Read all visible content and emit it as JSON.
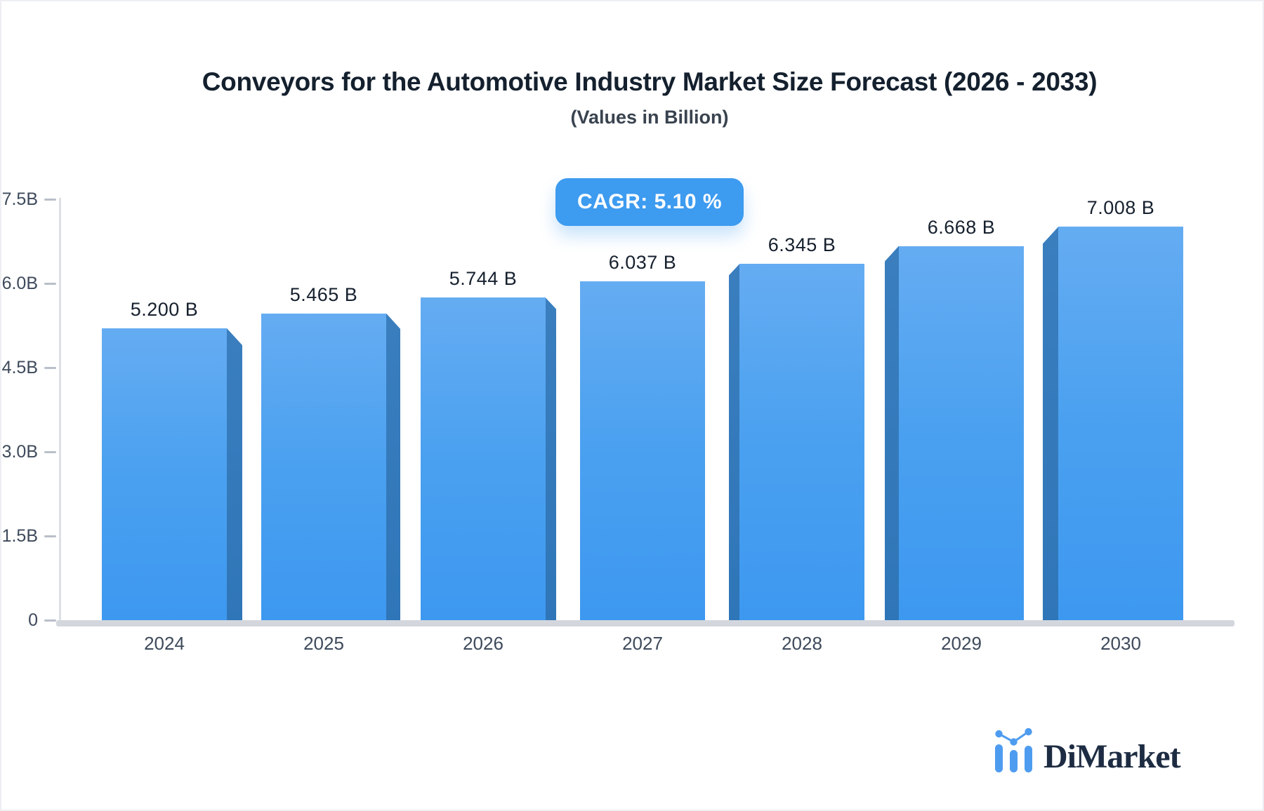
{
  "header": {
    "title": "Conveyors for the Automotive Industry Market Size Forecast (2026 - 2033)",
    "subtitle": "(Values in Billion)",
    "cagr_badge": "CAGR: 5.10 %"
  },
  "branding": {
    "logo_text": "DiMarket",
    "logo_icon": "mini-bar-chart-icon"
  },
  "colors": {
    "background": "#FFFFFF",
    "bar_face_top": "#65ACF2",
    "bar_face_bottom": "#3D98F0",
    "bar_side": "#2F76B8",
    "badge_bg": "#3D9BF0",
    "badge_text": "#FFFFFF",
    "title_text": "#14202E",
    "subtitle_text": "#39434F",
    "axis_text": "#3E4A5B",
    "value_text": "#16202E",
    "axis_line": "#DCDFE4",
    "baseline": "#D3D7DD",
    "logo_blue": "#4E9CF0",
    "logo_navy": "#1D2C42"
  },
  "chart_data": {
    "type": "bar",
    "title": "Conveyors for the Automotive Industry Market Size Forecast (2026 - 2033)",
    "subtitle": "(Values in Billion)",
    "annotation": "CAGR: 5.10 %",
    "categories": [
      "2024",
      "2025",
      "2026",
      "2027",
      "2028",
      "2029",
      "2030"
    ],
    "values": [
      5.2,
      5.465,
      5.744,
      6.037,
      6.345,
      6.668,
      7.008
    ],
    "value_labels": [
      "5.200 B",
      "5.465 B",
      "5.744 B",
      "6.037 B",
      "6.345 B",
      "6.668 B",
      "7.008 B"
    ],
    "y_ticks": [
      {
        "label": "0",
        "value": 0
      },
      {
        "label": "1.5B",
        "value": 1.5
      },
      {
        "label": "3.0B",
        "value": 3.0
      },
      {
        "label": "4.5B",
        "value": 4.5
      },
      {
        "label": "6.0B",
        "value": 6.0
      },
      {
        "label": "7.5B",
        "value": 7.5
      }
    ],
    "ylim": [
      0,
      7.5
    ],
    "unit": "Billion",
    "grid": false,
    "legend": false,
    "bar_style": "3d-beveled"
  }
}
